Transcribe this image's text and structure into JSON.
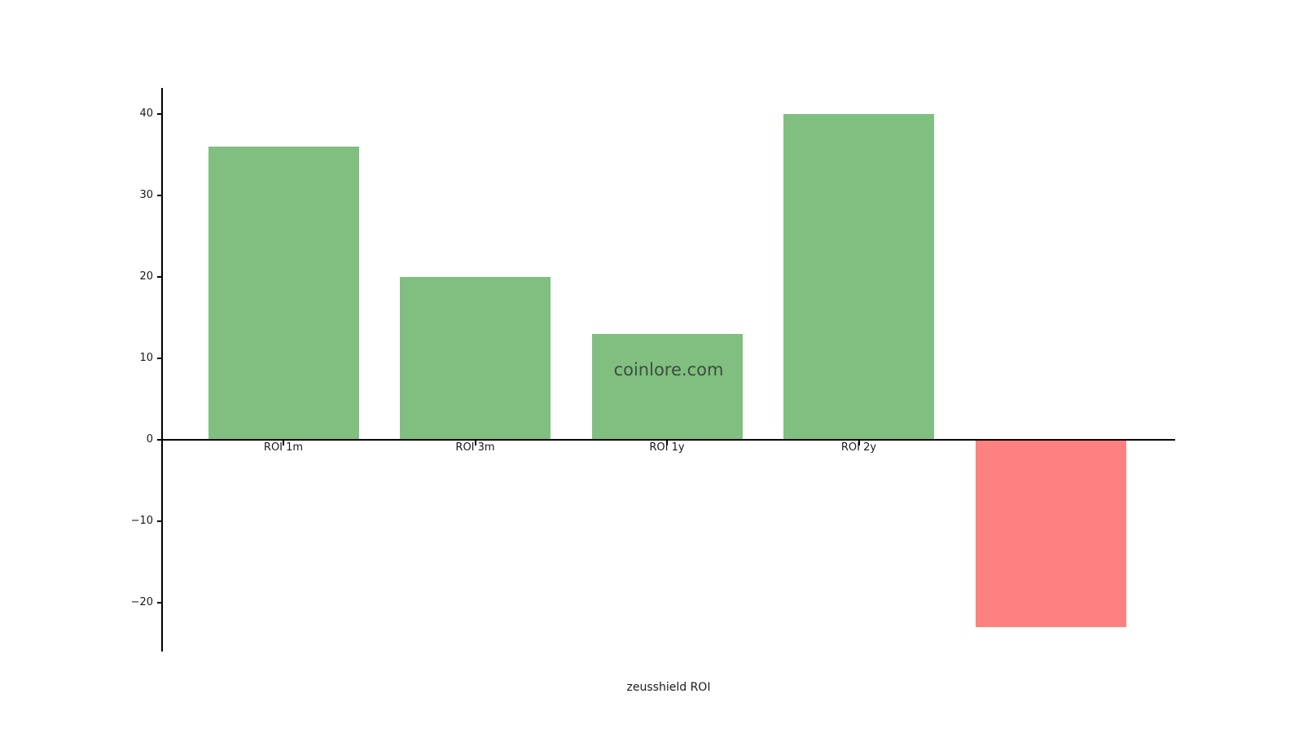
{
  "chart_data": {
    "type": "bar",
    "title": "",
    "xlabel": "zeusshield ROI",
    "ylabel": "",
    "categories": [
      "ROI 1m",
      "ROI 3m",
      "ROI 1y",
      "ROI 2y",
      ""
    ],
    "series": [
      {
        "name": "ROI",
        "values": [
          36,
          20,
          13,
          40,
          -23
        ]
      }
    ],
    "bar_colors": [
      "#80bf80",
      "#80bf80",
      "#80bf80",
      "#80bf80",
      "#ff8080"
    ],
    "positive_color": "#80bf80",
    "negative_color": "#ff8080",
    "yticks": [
      40,
      30,
      20,
      10,
      0,
      -10,
      -20
    ],
    "ylim": [
      -26,
      43.2
    ],
    "grid": false,
    "legend": null,
    "watermark": "coinlore.com",
    "axis_color": "#000000",
    "text_color": "#1a1a1a"
  }
}
